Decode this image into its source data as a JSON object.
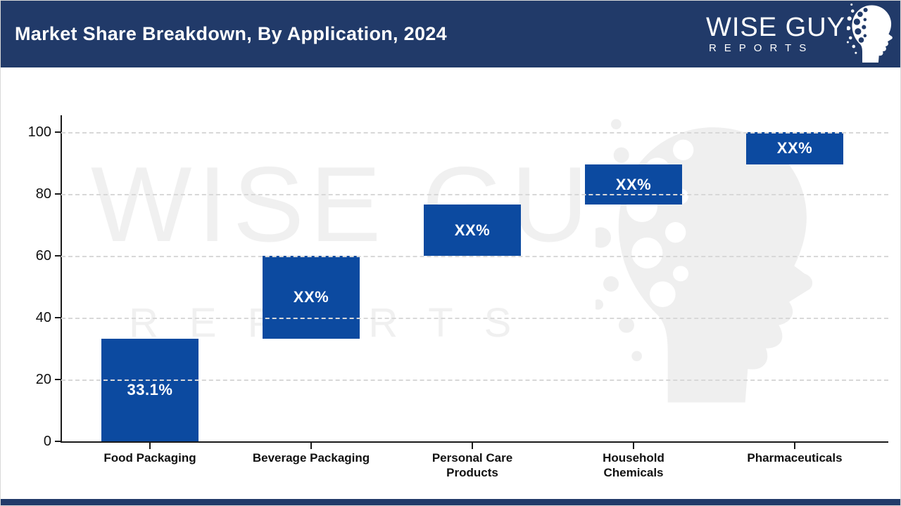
{
  "header": {
    "title": "Market Share Breakdown, By Application, 2024",
    "logo": {
      "name": "WISE GUY",
      "subtitle": "REPORTS"
    }
  },
  "watermark": {
    "line1": "WISE GUY",
    "line2": "REPORTS"
  },
  "chart_data": {
    "type": "waterfall",
    "title": "Market Share Breakdown, By Application, 2024",
    "categories": [
      "Food Packaging",
      "Beverage Packaging",
      "Personal Care Products",
      "Household Chemicals",
      "Pharmaceuticals"
    ],
    "category_lines": [
      [
        "Food Packaging"
      ],
      [
        "Beverage Packaging"
      ],
      [
        "Personal Care",
        "Products"
      ],
      [
        "Household",
        "Chemicals"
      ],
      [
        "Pharmaceuticals"
      ]
    ],
    "segments": [
      {
        "name": "Food Packaging",
        "start": 0,
        "end": 33.1,
        "label": "33.1%"
      },
      {
        "name": "Beverage Packaging",
        "start": 33.1,
        "end": 60.0,
        "label": "XX%"
      },
      {
        "name": "Personal Care Products",
        "start": 60.0,
        "end": 76.5,
        "label": "XX%"
      },
      {
        "name": "Household Chemicals",
        "start": 76.5,
        "end": 89.5,
        "label": "XX%"
      },
      {
        "name": "Pharmaceuticals",
        "start": 89.5,
        "end": 100.0,
        "label": "XX%"
      }
    ],
    "yticks": [
      0,
      20,
      40,
      60,
      80,
      100
    ],
    "ylim": [
      0,
      105
    ],
    "xlabel": "",
    "ylabel": "",
    "grid": "horizontal-dashed",
    "legend": "none"
  },
  "colors": {
    "header_bg": "#213A69",
    "footer_bg": "#213A69",
    "bar": "#0C4AA0",
    "grid": "#D8D8D8",
    "axis": "#1A1A1A",
    "watermark": "#F0F0F0"
  }
}
